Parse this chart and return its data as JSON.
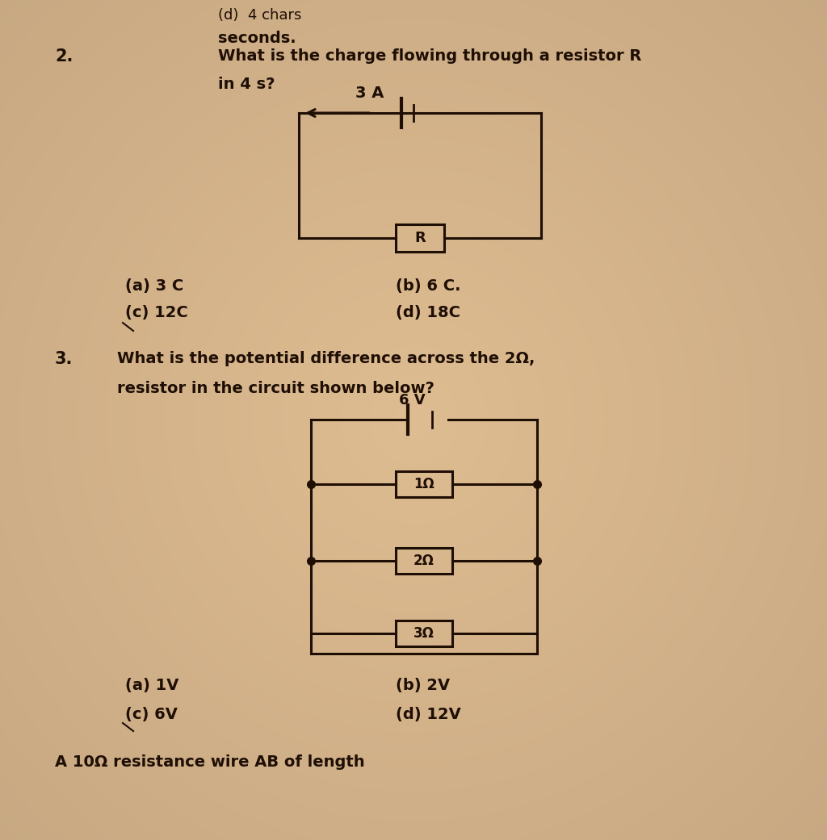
{
  "bg_color": "#c8a882",
  "text_color": "#1e0e04",
  "q2_num": "2.",
  "q2_text_line1": "What is the charge flowing through a resistor R",
  "q2_text_line2": "in 4 s?",
  "seconds_text": "seconds.",
  "q2_options_left": [
    "(a) 3 C",
    "(c) 12C"
  ],
  "q2_options_right": [
    "(b) 6 C.",
    "(d) 18C"
  ],
  "q3_num": "3.",
  "q3_text_line1": "What is the potential difference across the 2Ω,",
  "q3_text_line2": "resistor in the circuit shown below?",
  "q3_options_left": [
    "(a) 1V",
    "(c) 6V"
  ],
  "q3_options_right": [
    "(b) 2V",
    "(d) 12V"
  ],
  "bottom_text": "A 10Ω resistance wire AB of length",
  "circuit1_label": "3 A",
  "circuit1_resistor": "R",
  "circuit2_voltage": "6 V",
  "circuit2_resistors": [
    "1Ω",
    "2Ω",
    "3Ω"
  ],
  "partial_top": "(d) 4 chars"
}
